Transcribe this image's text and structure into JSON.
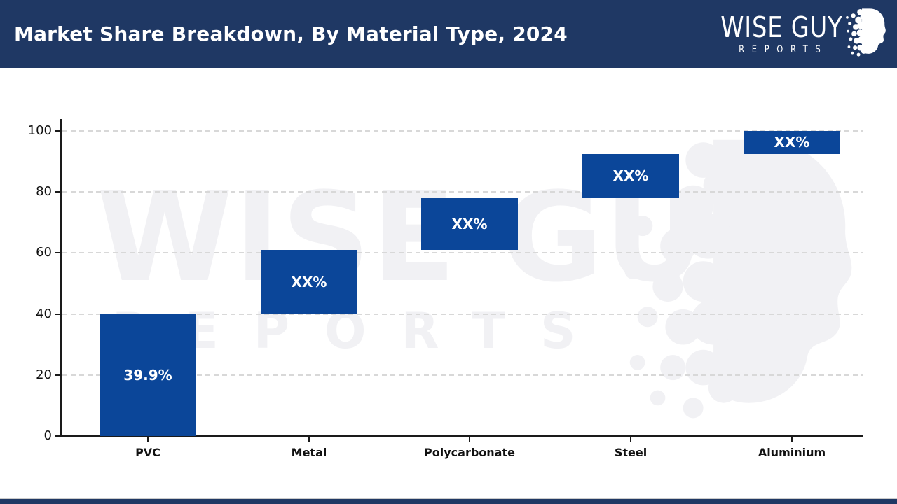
{
  "header": {
    "title": "Market Share Breakdown, By Material Type, 2024",
    "logo": {
      "name": "WISE GUY",
      "sub": "REPORTS"
    }
  },
  "watermark": {
    "line1": "WISE GUY",
    "line2": "REPORTS"
  },
  "colors": {
    "header_bg": "#1f3864",
    "footer_bg": "#1f3864",
    "bar_fill": "#0b4699",
    "grid_line": "#d8d8d8",
    "axis_line": "#1a1a1a",
    "bar_label_text": "#ffffff",
    "tick_label_text": "#111111",
    "watermark": "#f1f1f4"
  },
  "chart_data": {
    "type": "bar",
    "variant": "waterfall",
    "title": "Market Share Breakdown, By Material Type, 2024",
    "categories": [
      "PVC",
      "Metal",
      "Polycarbonate",
      "Steel",
      "Aluminium"
    ],
    "bars": [
      {
        "category": "PVC",
        "start": 0,
        "end": 39.9,
        "label": "39.9%"
      },
      {
        "category": "Metal",
        "start": 39.9,
        "end": 61,
        "label": "XX%"
      },
      {
        "category": "Polycarbonate",
        "start": 61,
        "end": 78,
        "label": "XX%"
      },
      {
        "category": "Steel",
        "start": 78,
        "end": 92.5,
        "label": "XX%"
      },
      {
        "category": "Aluminium",
        "start": 92.5,
        "end": 100,
        "label": "XX%"
      }
    ],
    "xlabel": "",
    "ylabel": "",
    "y_ticks": [
      0,
      20,
      40,
      60,
      80,
      100
    ],
    "ylim": [
      0,
      105
    ],
    "grid": "horizontal-dashed",
    "legend": "none"
  }
}
